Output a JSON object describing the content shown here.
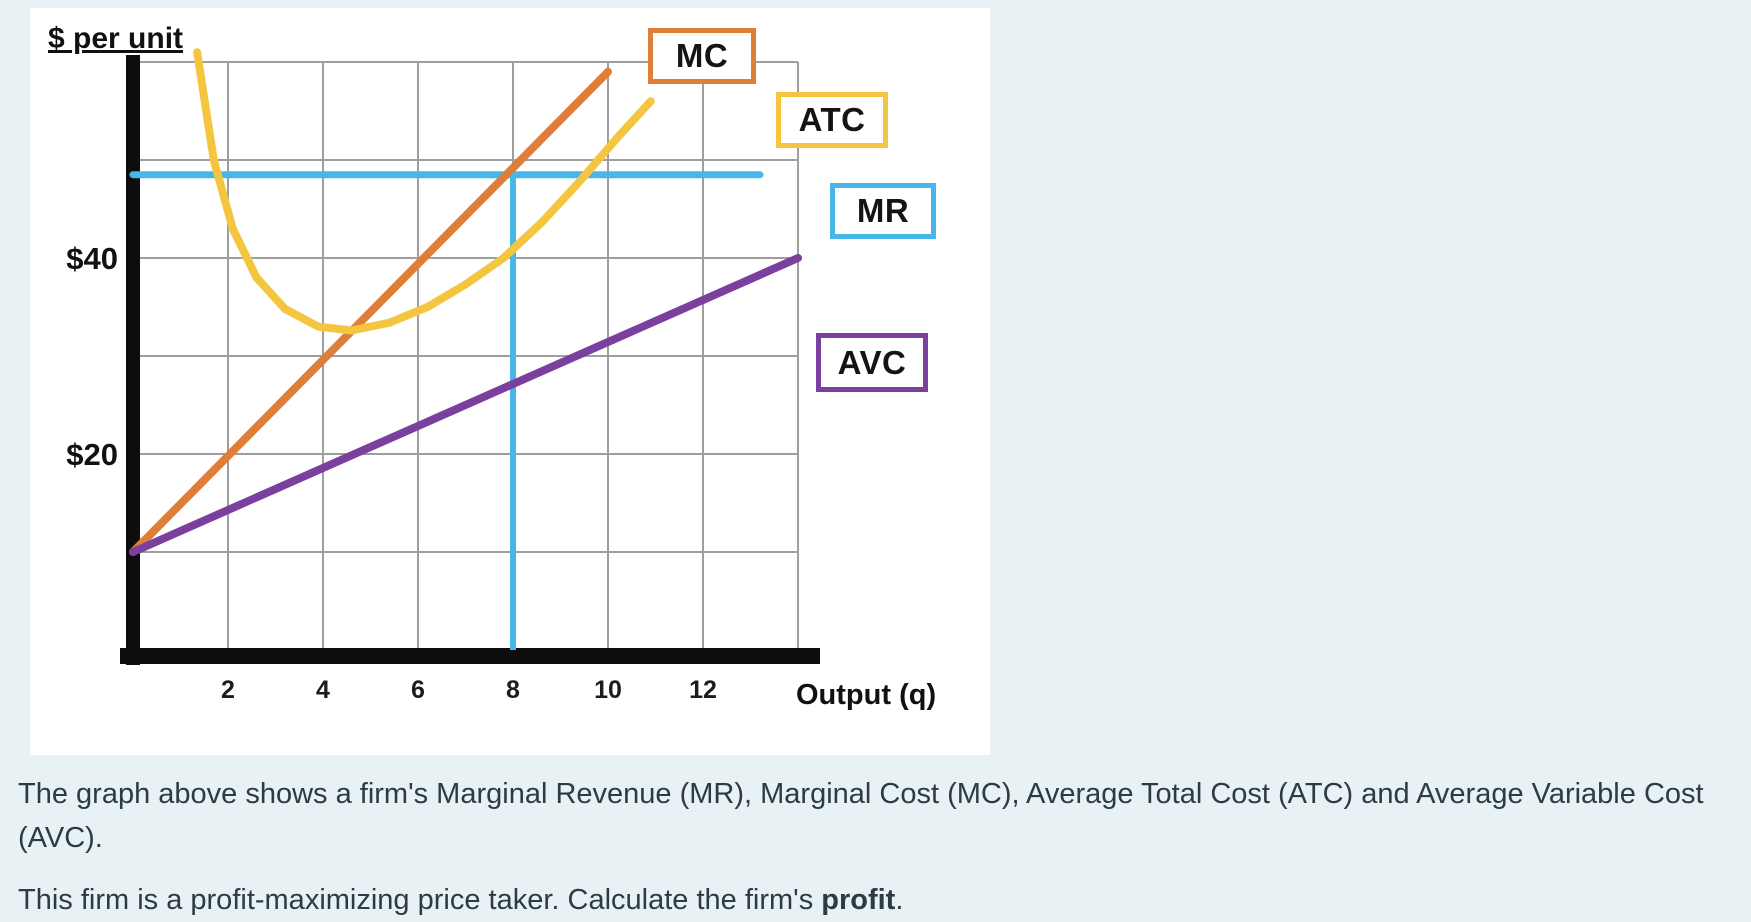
{
  "page": {
    "background": "#e8f2f5",
    "text_color": "#2d3b45"
  },
  "question": {
    "paragraph1": "The graph above shows a firm's Marginal Revenue (MR), Marginal Cost (MC), Average Total Cost (ATC) and Average Variable Cost (AVC).",
    "paragraph2_before": "This firm is a profit-maximizing price taker. Calculate the firm's ",
    "paragraph2_bold": "profit",
    "paragraph2_after": "."
  },
  "chart_data": {
    "type": "line",
    "y_axis_title": "$ per unit",
    "x_axis_title": "Output (q)",
    "x_range": [
      0,
      14
    ],
    "y_range": [
      0,
      60
    ],
    "x_grid_step": 2,
    "y_grid_step": 10,
    "grid": true,
    "grid_color": "#9e9e9e",
    "axis_color": "#0d0d0d",
    "x_ticks": [
      2,
      4,
      6,
      8,
      10,
      12
    ],
    "y_tick_labels": [
      {
        "value": 20,
        "label": "$20"
      },
      {
        "value": 40,
        "label": "$40"
      }
    ],
    "series": [
      {
        "name": "MC",
        "color": "#df7e38",
        "width": 8,
        "points": [
          [
            0,
            10
          ],
          [
            10,
            59
          ]
        ]
      },
      {
        "name": "ATC",
        "color": "#f4c63f",
        "width": 8,
        "points": [
          [
            1.35,
            61
          ],
          [
            1.7,
            50
          ],
          [
            2.1,
            43
          ],
          [
            2.6,
            38
          ],
          [
            3.2,
            34.8
          ],
          [
            3.9,
            33
          ],
          [
            4.6,
            32.6
          ],
          [
            5.4,
            33.4
          ],
          [
            6.2,
            35
          ],
          [
            7,
            37.3
          ],
          [
            7.8,
            40
          ],
          [
            8.6,
            43.6
          ],
          [
            9.4,
            47.8
          ],
          [
            10.2,
            52.3
          ],
          [
            10.9,
            56
          ]
        ]
      },
      {
        "name": "MR",
        "color": "#47b7ea",
        "width": 7,
        "points": [
          [
            0,
            48.5
          ],
          [
            13.2,
            48.5
          ]
        ]
      },
      {
        "name": "AVC",
        "color": "#7b3f9e",
        "width": 8,
        "points": [
          [
            0,
            10
          ],
          [
            14,
            40
          ]
        ]
      }
    ],
    "annotations": [
      {
        "type": "vline",
        "x": 8,
        "y_from": 0,
        "y_to": 48.5,
        "color": "#47b7ea",
        "width": 6
      }
    ],
    "legend": [
      "MC",
      "ATC",
      "MR",
      "AVC"
    ],
    "legend_position": "right"
  }
}
